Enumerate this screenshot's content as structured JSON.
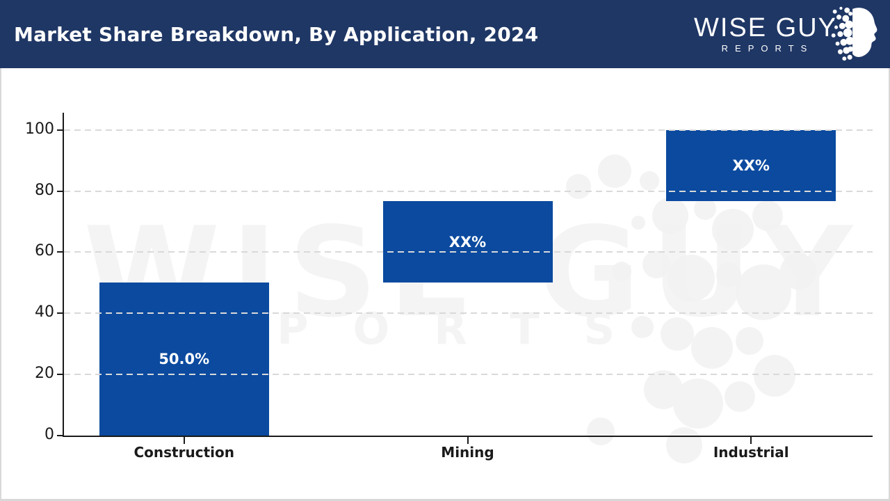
{
  "header": {
    "title": "Market Share Breakdown, By Application, 2024",
    "bg_color": "#1f3765",
    "logo": {
      "line1": "WISE GUY",
      "line2": "REPORTS"
    }
  },
  "watermark": {
    "line1": "WISE GUY",
    "line2": "REPORTS"
  },
  "chart_data": {
    "type": "bar",
    "subtype": "waterfall",
    "title": "Market Share Breakdown, By Application, 2024",
    "categories": [
      "Construction",
      "Mining",
      "Industrial"
    ],
    "bars": [
      {
        "category": "Construction",
        "start": 0,
        "end": 50,
        "label": "50.0%"
      },
      {
        "category": "Mining",
        "start": 50,
        "end": 76.7,
        "label": "XX%"
      },
      {
        "category": "Industrial",
        "start": 76.7,
        "end": 100,
        "label": "XX%"
      }
    ],
    "ylim": [
      0,
      105
    ],
    "yticks": [
      0,
      20,
      40,
      60,
      80,
      100
    ],
    "xlabel": "",
    "ylabel": "",
    "grid": "horizontal-dashed",
    "legend": "none",
    "bar_color": "#0b4a9f",
    "bar_label_color": "#ffffff",
    "grid_color": "#d9d9d9",
    "axis_color": "#1a1a1a"
  }
}
